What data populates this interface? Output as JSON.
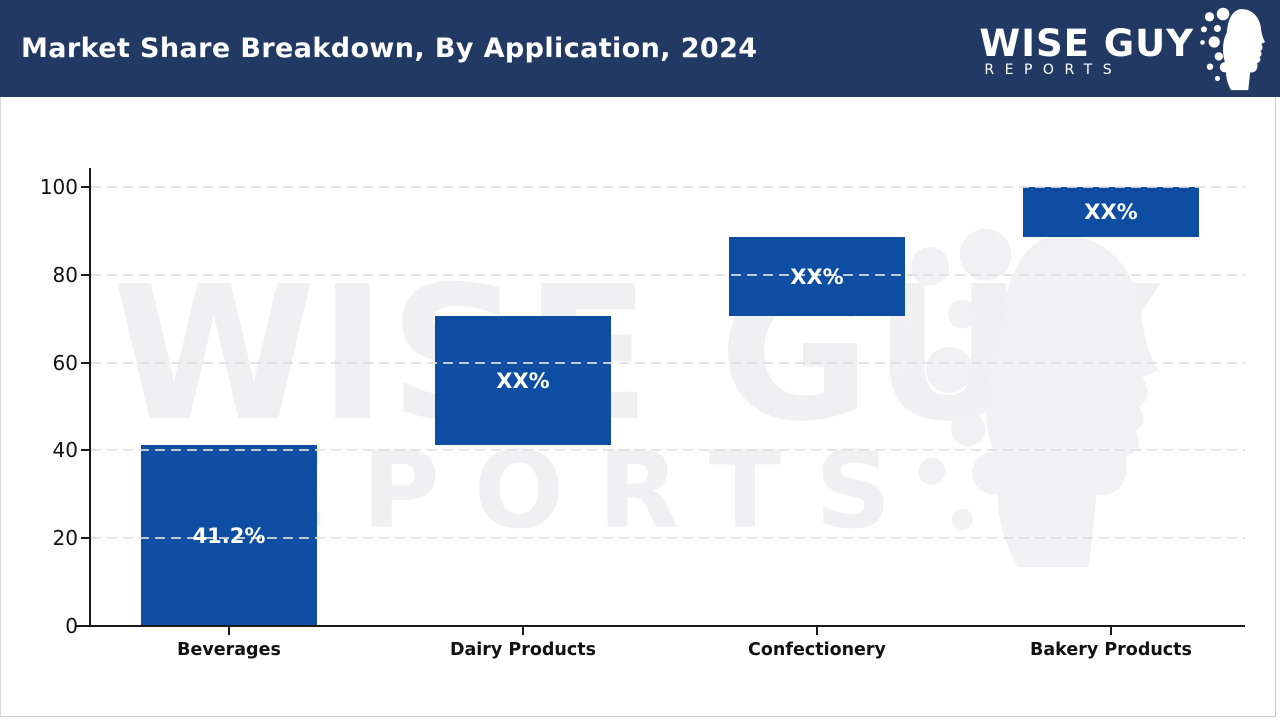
{
  "header": {
    "title": "Market Share Breakdown, By Application, 2024",
    "bg_color": "#223a63",
    "logo": {
      "line1": "WISE GUY",
      "line2": "REPORTS"
    }
  },
  "chart_data": {
    "type": "bar",
    "subtype": "waterfall",
    "title": "Market Share Breakdown, By Application, 2024",
    "categories": [
      "Beverages",
      "Dairy Products",
      "Confectionery",
      "Bakery Products"
    ],
    "segments": [
      {
        "category": "Beverages",
        "start": 0,
        "end": 41.2,
        "label": "41.2%"
      },
      {
        "category": "Dairy Products",
        "start": 41.2,
        "end": 70.6,
        "label": "XX%"
      },
      {
        "category": "Confectionery",
        "start": 70.6,
        "end": 88.5,
        "label": "XX%"
      },
      {
        "category": "Bakery Products",
        "start": 88.5,
        "end": 100,
        "label": "XX%"
      }
    ],
    "ylim": [
      0,
      100
    ],
    "yticks": [
      0,
      20,
      40,
      60,
      80,
      100
    ],
    "gridline_values": [
      20,
      40,
      60,
      80,
      100
    ],
    "grid": "horizontal-dashed",
    "legend": "none",
    "bar_color": "#0d4da2",
    "value_label_color": "#ffffff"
  },
  "watermark": {
    "line1": "WISE GUY",
    "line2": "REPORTS"
  }
}
